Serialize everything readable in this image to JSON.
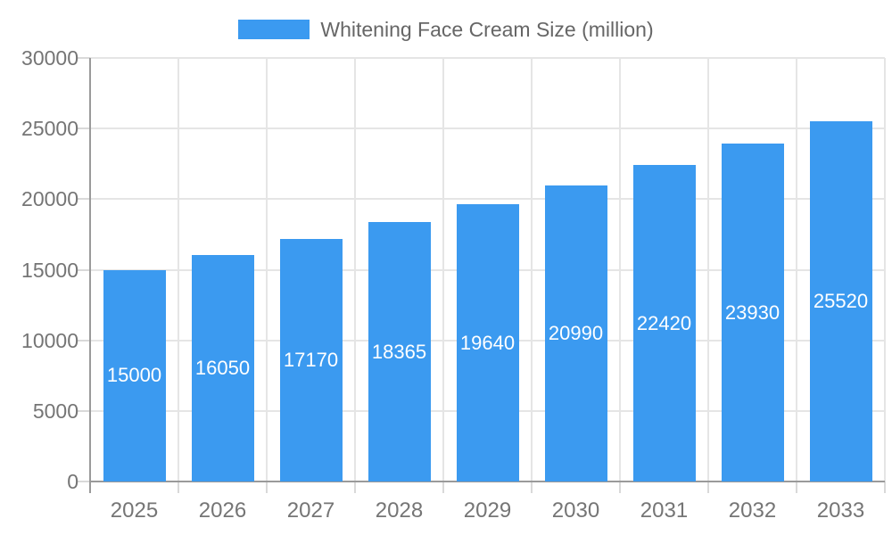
{
  "chart_data": {
    "type": "bar",
    "title": "Whitening Face Cream Size (million)",
    "legend": [
      {
        "label": "Whitening Face Cream Size (million)",
        "position": "top"
      }
    ],
    "categories": [
      "2025",
      "2026",
      "2027",
      "2028",
      "2029",
      "2030",
      "2031",
      "2032",
      "2033"
    ],
    "values": [
      15000,
      16050,
      17170,
      18365,
      19640,
      20990,
      22420,
      23930,
      25520
    ],
    "xlabel": "",
    "ylabel": "",
    "ylim": [
      0,
      30000
    ],
    "yticks": [
      0,
      5000,
      10000,
      15000,
      20000,
      25000,
      30000
    ],
    "grid": true,
    "bar_value_labels_visible": true,
    "colors": {
      "bar": "#3b9af0",
      "bar_value_text": "#ffffff",
      "axis_text": "#757575",
      "legend_text": "#666666",
      "gridline": "#e5e5e5",
      "tick": "#d9d9d9",
      "axis_line": "#9a9a9a",
      "background": "#ffffff"
    }
  }
}
